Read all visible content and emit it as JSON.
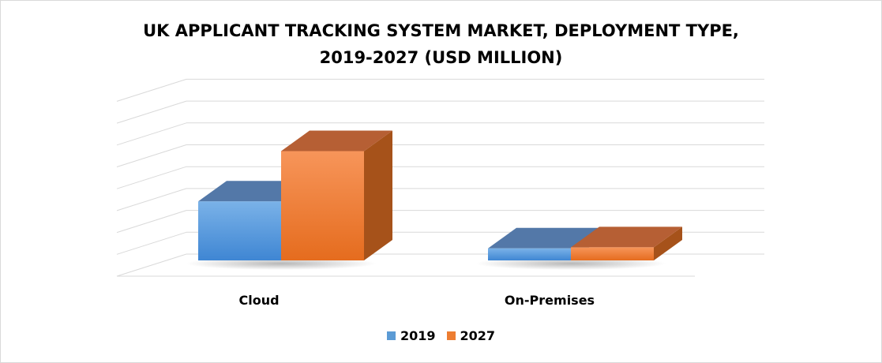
{
  "chart_data": {
    "type": "bar",
    "title_line1": "UK APPLICANT TRACKING SYSTEM MARKET, DEPLOYMENT TYPE,",
    "title_line2": "2019-2027 (USD MILLION)",
    "categories": [
      "Cloud",
      "On-Premises"
    ],
    "series": [
      {
        "name": "2019",
        "values": [
          2.7,
          0.55
        ],
        "color": "#5b9bd5"
      },
      {
        "name": "2027",
        "values": [
          5.0,
          0.6
        ],
        "color": "#ed7d31"
      }
    ],
    "ylim": [
      0,
      8
    ],
    "grid": true,
    "legend_position": "bottom",
    "three_d": true
  }
}
